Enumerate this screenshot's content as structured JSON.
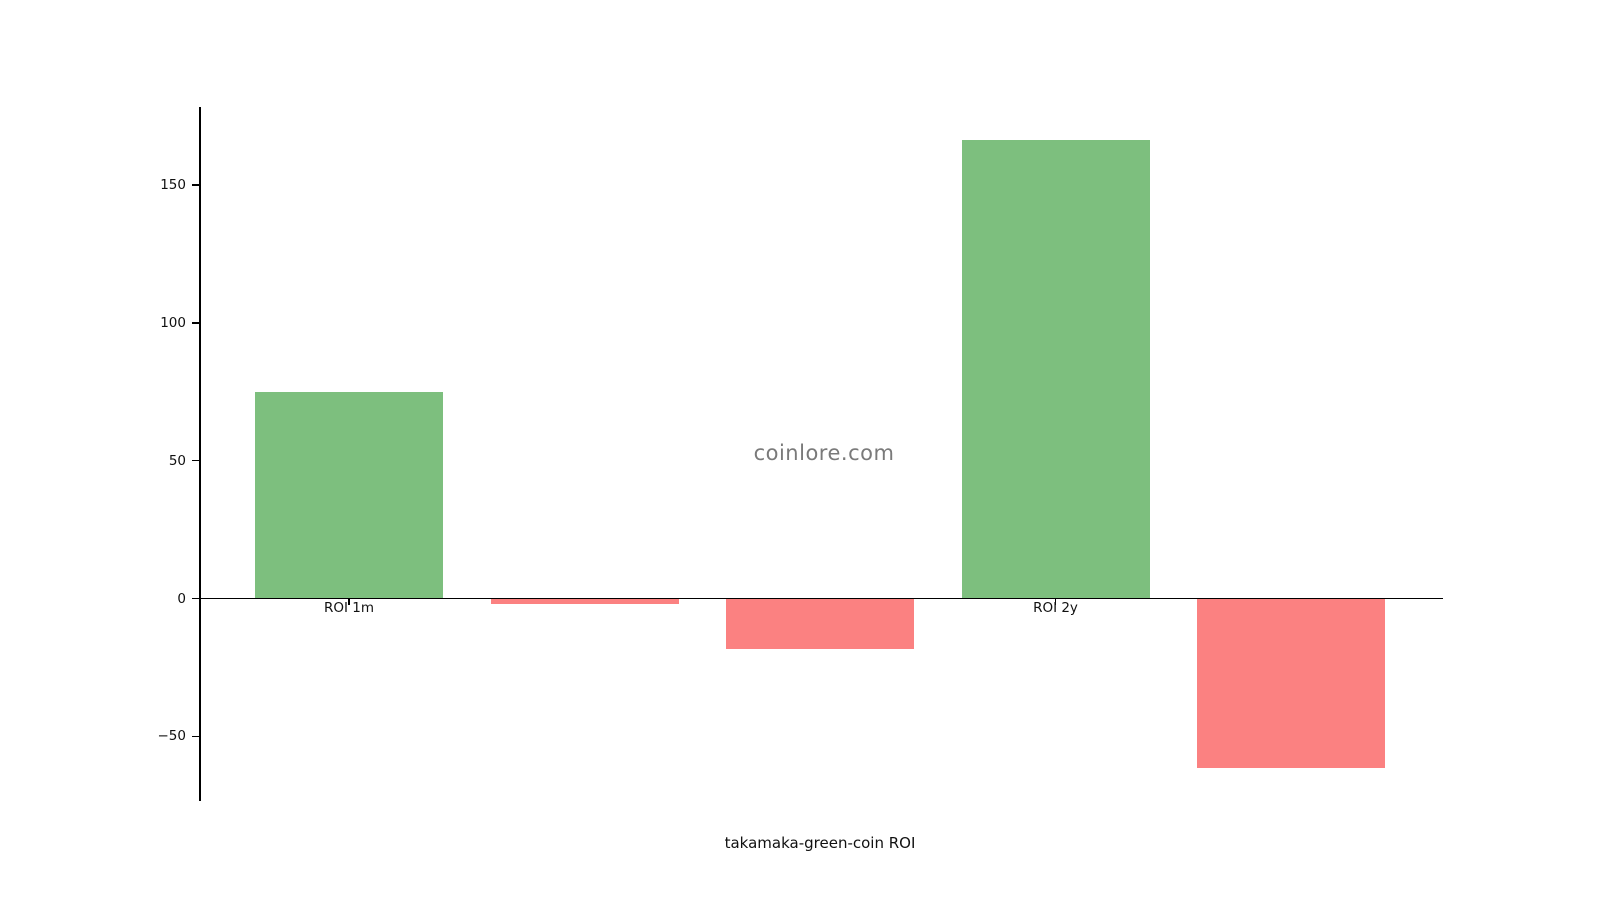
{
  "chart_data": {
    "type": "bar",
    "title": "takamaka-green-coin ROI",
    "watermark": "coinlore.com",
    "categories": [
      "ROI 1m",
      "",
      "",
      "ROI 2y",
      ""
    ],
    "values": [
      74.9,
      -2.0,
      -18.3,
      166.5,
      -61.6
    ],
    "visible_xticks": [
      {
        "index": 0,
        "label": "ROI 1m"
      },
      {
        "index": 3,
        "label": "ROI 2y"
      }
    ],
    "yticks": [
      150,
      100,
      50,
      0,
      -50
    ],
    "ylim": [
      -73.5,
      178.5
    ],
    "grid": false,
    "legend": null,
    "colors": {
      "positive_bar": "#7dbf7e",
      "negative_bar": "#fb8181",
      "axis": "#000000",
      "tick_text": "#111111",
      "watermark_text": "#7a7a7a",
      "background": "#ffffff"
    }
  }
}
